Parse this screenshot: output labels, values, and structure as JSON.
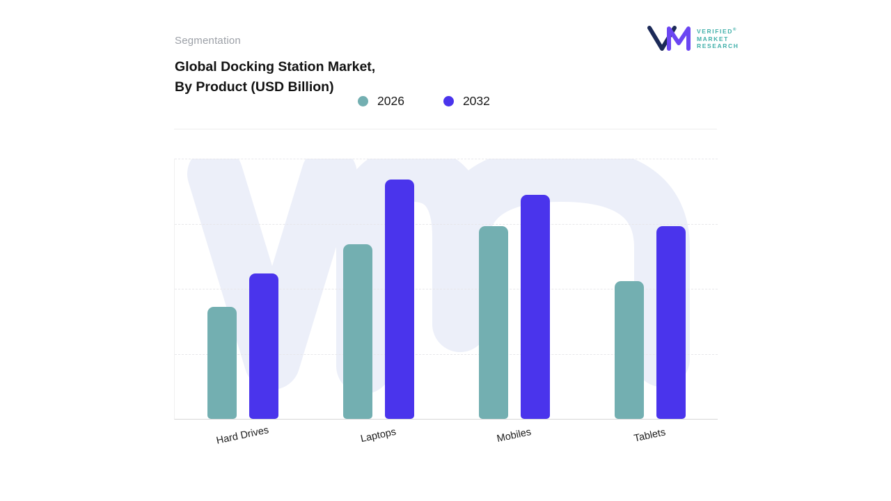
{
  "header": {
    "eyebrow": "Segmentation",
    "title_line1": "Global Docking Station Market,",
    "title_line2": "By Product (USD Billion)"
  },
  "logo": {
    "lines": [
      "VERIFIED",
      "MARKET",
      "RESEARCH"
    ],
    "registered_mark": "®"
  },
  "colors": {
    "watermark": "#ECEFF9",
    "logo_navy": "#1C2A58",
    "logo_purple": "#6B46F2",
    "logo_text": "#3FAFA9",
    "series_2026": "#73AFB1",
    "series_2032": "#4A34EC"
  },
  "chart_data": {
    "type": "bar",
    "title": "Global Docking Station Market, By Product (USD Billion)",
    "categories": [
      "Hard Drives",
      "Laptops",
      "Mobiles",
      "Tablets"
    ],
    "series": [
      {
        "name": "2026",
        "color": "#73AFB1",
        "values": [
          43,
          67,
          74,
          53
        ]
      },
      {
        "name": "2032",
        "color": "#4A34EC",
        "values": [
          56,
          92,
          86,
          74
        ]
      }
    ],
    "xlabel": "",
    "ylabel": "",
    "ylim": [
      0,
      100
    ],
    "grid": "horizontal-dashed",
    "legend_position": "top"
  }
}
